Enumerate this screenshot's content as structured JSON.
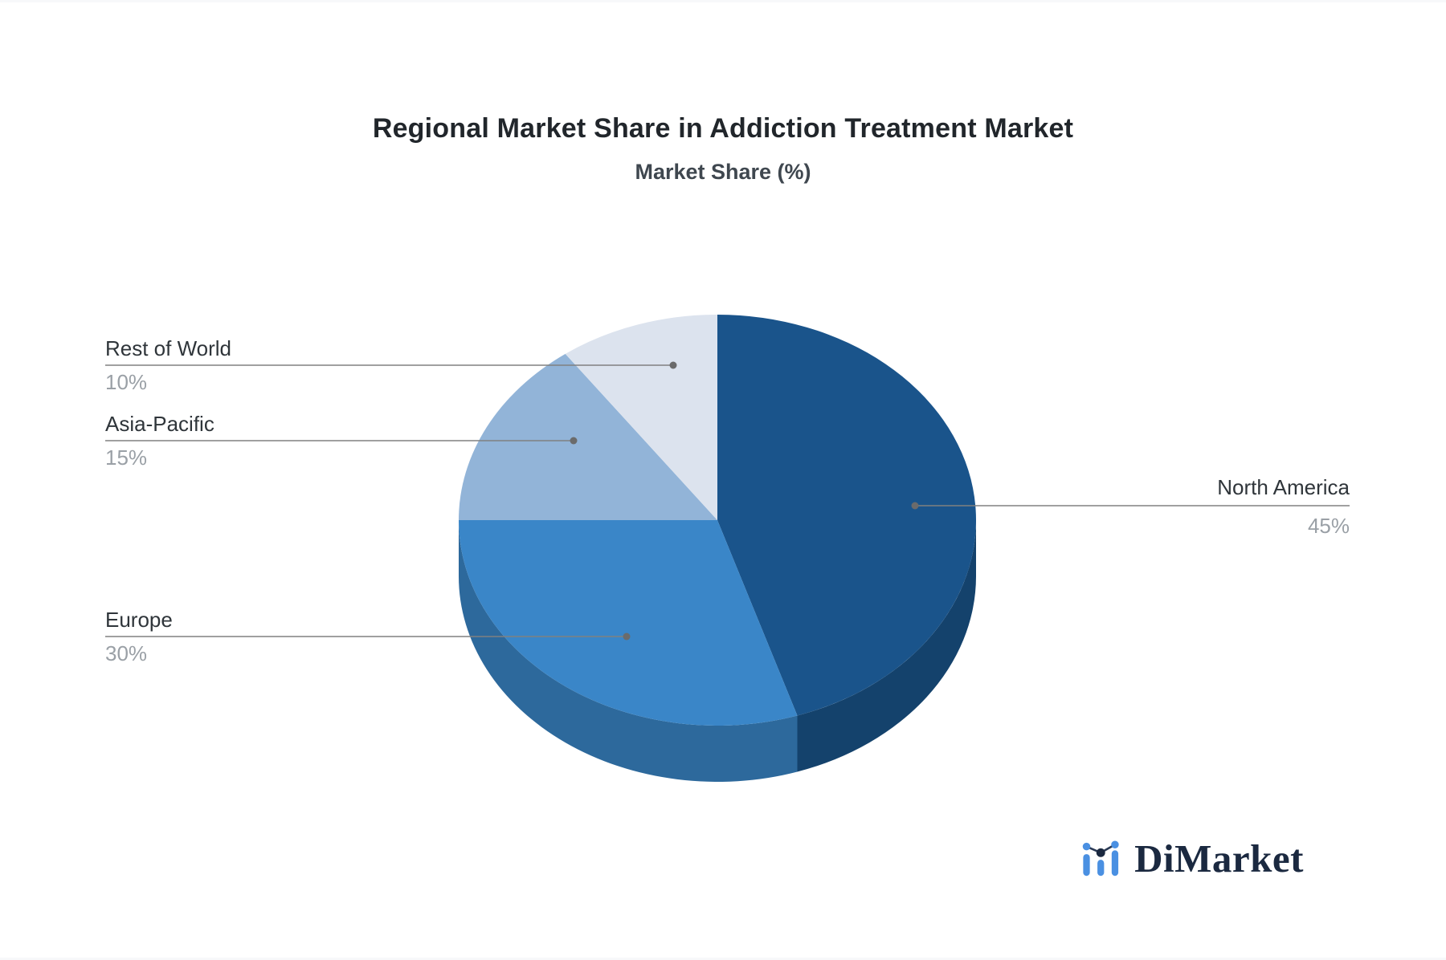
{
  "header": {
    "title": "Regional Market Share in Addiction Treatment Market",
    "subtitle": "Market Share (%)"
  },
  "chart_data": {
    "type": "pie",
    "style": "3d",
    "title": "Regional Market Share in Addiction Treatment Market",
    "subtitle": "Market Share (%)",
    "unit": "%",
    "start_angle_deg": 0,
    "clockwise": true,
    "categories": [
      "North America",
      "Europe",
      "Asia-Pacific",
      "Rest of World"
    ],
    "values": [
      45,
      30,
      15,
      10
    ],
    "slices": [
      {
        "name": "North America",
        "value": 45,
        "pct": "45%",
        "color": "#1a548b"
      },
      {
        "name": "Europe",
        "value": 30,
        "pct": "30%",
        "color": "#3a86c8"
      },
      {
        "name": "Asia-Pacific",
        "value": 15,
        "pct": "15%",
        "color": "#92b4d8"
      },
      {
        "name": "Rest of World",
        "value": 10,
        "pct": "10%",
        "color": "#dce3ee"
      }
    ],
    "legend_position": "none",
    "label_style": {
      "name_color": "#2f353a",
      "pct_color": "#9aa0a6",
      "connector_color": "#808080"
    }
  },
  "branding": {
    "name": "DiMarket",
    "icon": "bar-chart-logo-icon",
    "text_color": "#1b2940",
    "icon_color": "#4a90e2",
    "icon_dot_color": "#1b2940"
  }
}
